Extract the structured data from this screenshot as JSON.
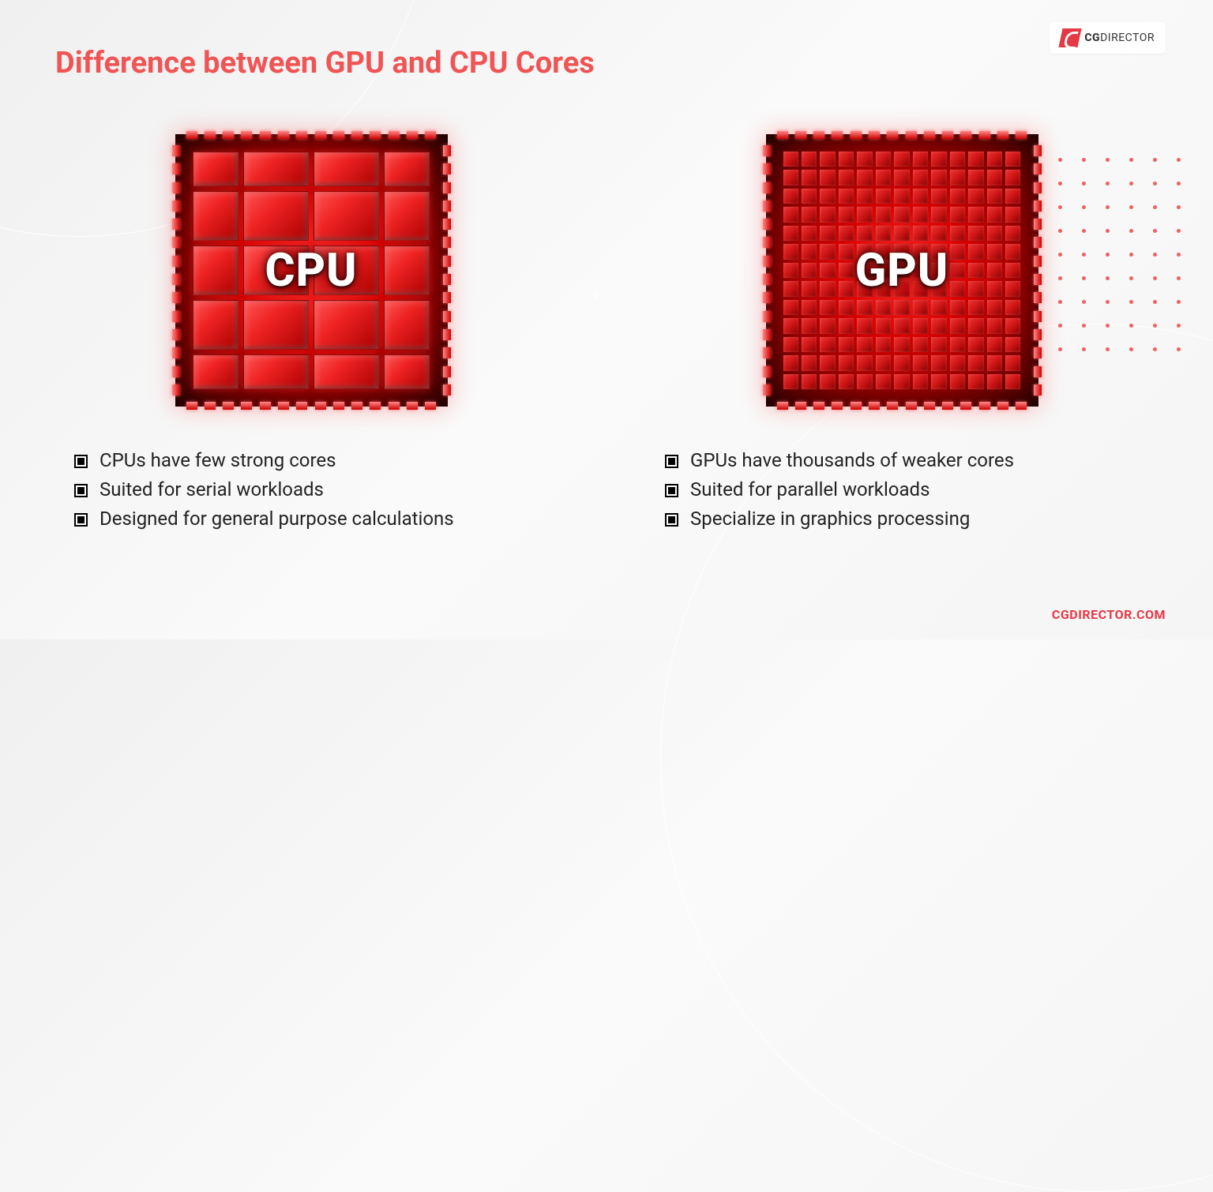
{
  "title": "Difference between GPU and CPU Cores",
  "logo": {
    "brand_bold": "CG",
    "brand_rest": "DIRECTOR"
  },
  "footer": "CGDIRECTOR.COM",
  "colors": {
    "accent": "#f05454",
    "brand_red": "#e63946",
    "text": "#222222",
    "chip_glow": "#ff3030",
    "chip_dark": "#3a0000"
  },
  "cpu": {
    "label": "CPU",
    "pin_count": 14,
    "grid": {
      "cols": 4,
      "rows": 5
    },
    "bullets": [
      "CPUs have few strong cores",
      "Suited for serial workloads",
      "Designed for general purpose calculations"
    ]
  },
  "gpu": {
    "label": "GPU",
    "pin_count": 14,
    "grid": {
      "cols": 13,
      "rows": 13
    },
    "bullets": [
      "GPUs have thousands of weaker cores",
      "Suited for parallel workloads",
      "Specialize in graphics processing"
    ]
  },
  "decoration": {
    "dot_grid": {
      "cols": 6,
      "rows": 9,
      "color": "#f26060"
    },
    "plus_symbol": "+"
  }
}
